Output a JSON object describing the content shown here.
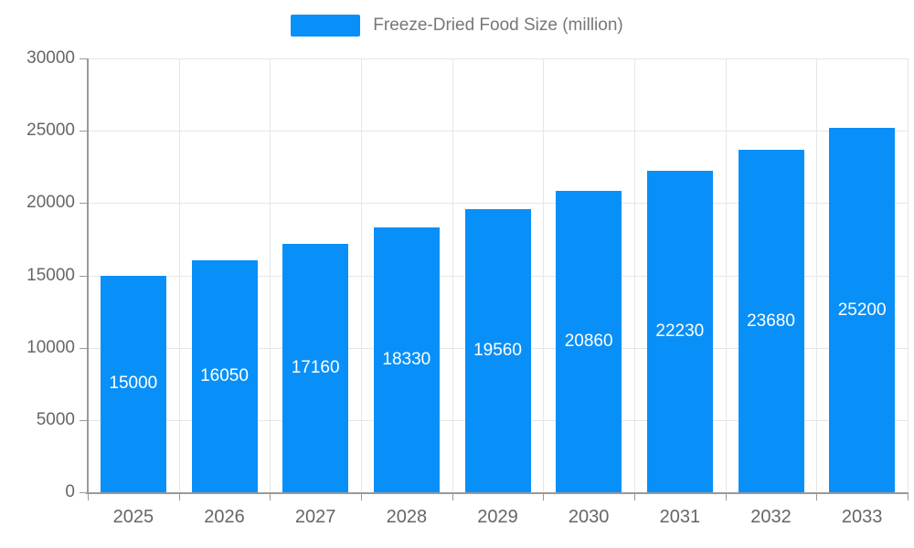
{
  "chart_data": {
    "type": "bar",
    "title": "",
    "series_name": "Freeze-Dried Food Size (million)",
    "categories": [
      "2025",
      "2026",
      "2027",
      "2028",
      "2029",
      "2030",
      "2031",
      "2032",
      "2033"
    ],
    "values": [
      15000,
      16050,
      17160,
      18330,
      19560,
      20860,
      22230,
      23680,
      25200
    ],
    "xlabel": "",
    "ylabel": "",
    "ylim": [
      0,
      30000
    ],
    "y_ticks": [
      0,
      5000,
      10000,
      15000,
      20000,
      25000,
      30000
    ],
    "grid": true,
    "legend_position": "top",
    "bar_label_position": "inside-center"
  },
  "colors": {
    "bar": "#0990f8",
    "grid": "#e6e6e6",
    "axis": "#999999",
    "tick": "#999999",
    "tick_label": "#666666",
    "legend_text": "#777777",
    "bar_label": "#ffffff",
    "background": "#ffffff"
  }
}
